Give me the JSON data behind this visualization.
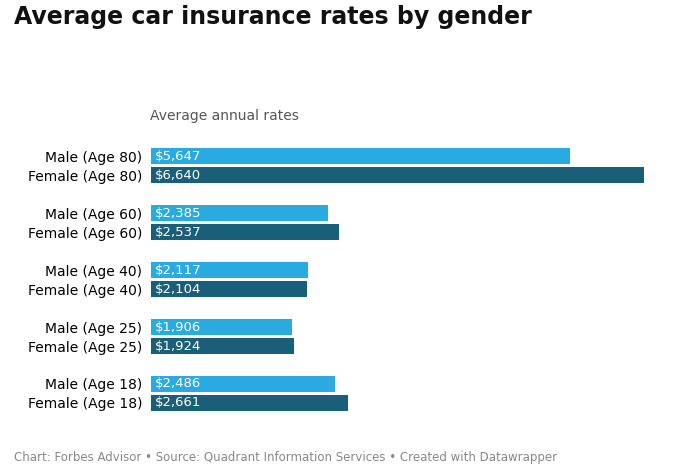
{
  "title": "Average car insurance rates by gender",
  "subtitle": "Average annual rates",
  "categories": [
    "Female (Age 18)",
    "Male (Age 18)",
    "Female (Age 25)",
    "Male (Age 25)",
    "Female (Age 40)",
    "Male (Age 40)",
    "Female (Age 60)",
    "Male (Age 60)",
    "Female (Age 80)",
    "Male (Age 80)"
  ],
  "values": [
    5647,
    6640,
    2385,
    2537,
    2117,
    2104,
    1906,
    1924,
    2486,
    2661
  ],
  "labels": [
    "$5,647",
    "$6,640",
    "$2,385",
    "$2,537",
    "$2,117",
    "$2,104",
    "$1,906",
    "$1,924",
    "$2,486",
    "$2,661"
  ],
  "colors": [
    "#29abe2",
    "#1a5f7a",
    "#29abe2",
    "#1a5f7a",
    "#29abe2",
    "#1a5f7a",
    "#29abe2",
    "#1a5f7a",
    "#29abe2",
    "#1a5f7a"
  ],
  "background_color": "#ffffff",
  "title_fontsize": 17,
  "subtitle_fontsize": 10,
  "label_fontsize": 9.5,
  "ytick_fontsize": 10,
  "footer_text": "Chart: Forbes Advisor • Source: Quadrant Information Services • Created with Datawrapper",
  "footer_fontsize": 8.5,
  "xlim": [
    0,
    7200
  ]
}
